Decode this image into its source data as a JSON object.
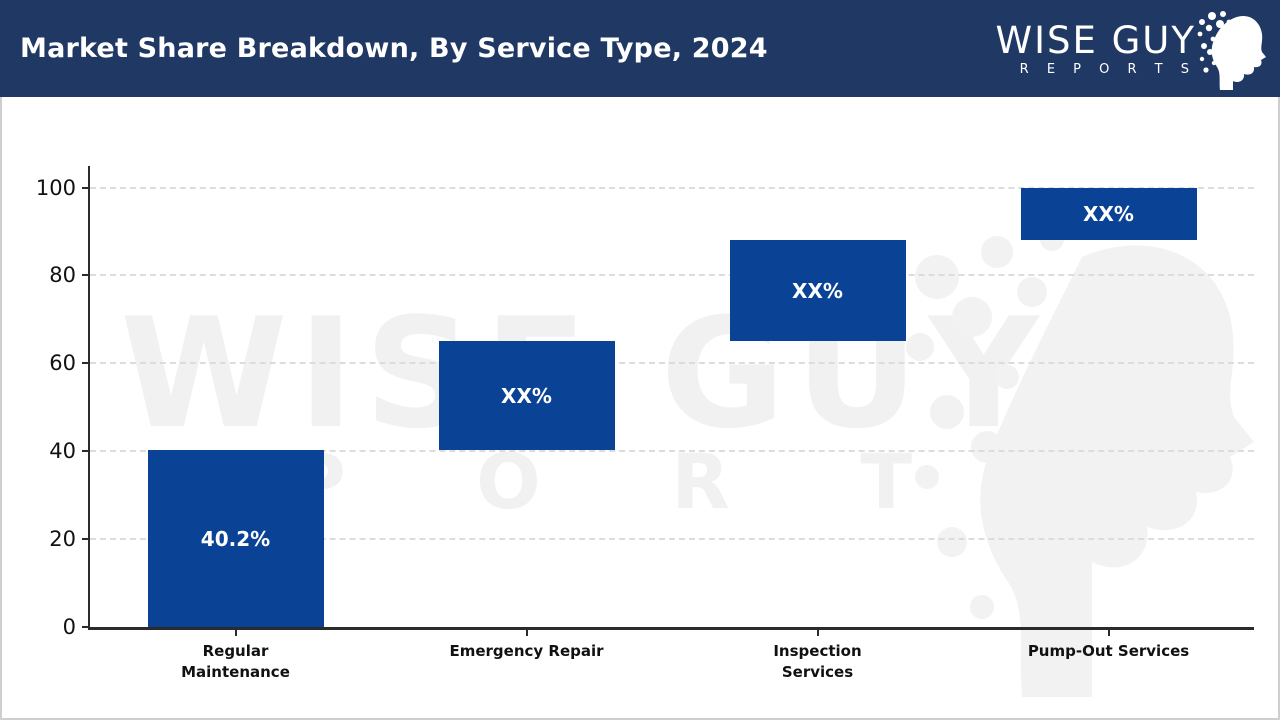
{
  "header": {
    "title": "Market Share Breakdown, By Service Type, 2024",
    "logo": {
      "brand": "WISE GUY",
      "subbrand": "R E P O R T S",
      "head_icon": "dotted-head-profile"
    }
  },
  "watermark": {
    "line1": "WISE GUY",
    "line2": "P O R T S"
  },
  "chart_data": {
    "type": "bar",
    "subtype": "waterfall",
    "title": "Market Share Breakdown, By Service Type, 2024",
    "categories": [
      [
        "Regular",
        "Maintenance"
      ],
      [
        "Emergency Repair"
      ],
      [
        "Inspection",
        "Services"
      ],
      [
        "Pump-Out Services"
      ]
    ],
    "segments": [
      {
        "category": "Regular Maintenance",
        "start": 0,
        "end": 40.2,
        "label": "40.2%"
      },
      {
        "category": "Emergency Repair",
        "start": 40.2,
        "end": 65,
        "label": "XX%"
      },
      {
        "category": "Inspection Services",
        "start": 65,
        "end": 88,
        "label": "XX%"
      },
      {
        "category": "Pump-Out Services",
        "start": 88,
        "end": 100,
        "label": "XX%"
      }
    ],
    "ylim": [
      0,
      100
    ],
    "yticks": [
      0,
      20,
      40,
      60,
      80,
      100
    ],
    "xlabel": "",
    "ylabel": "",
    "grid": "horizontal-dashed",
    "legend": "none",
    "colors": {
      "bar": "#0a4296",
      "bar_label": "#ffffff",
      "grid": "#dcdcdc",
      "axis": "#2b2b2b",
      "tick_label": "#111111",
      "header_bg": "#1f3864",
      "header_text": "#ffffff",
      "watermark": "#f1f1f1",
      "border": "#cfcfcf"
    }
  }
}
